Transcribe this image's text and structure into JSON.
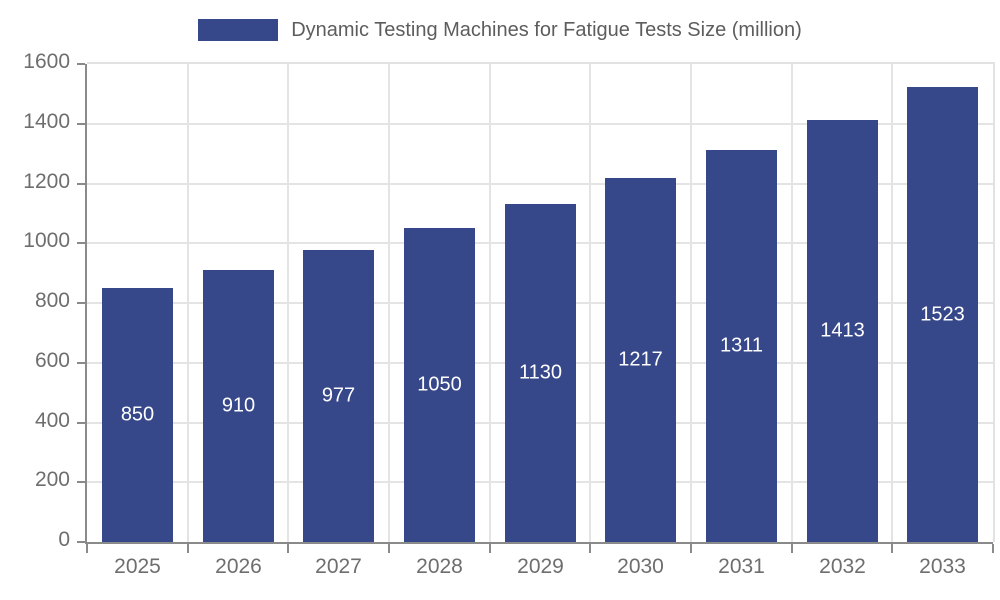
{
  "legend": {
    "label": "Dynamic Testing Machines for Fatigue Tests Size (million)"
  },
  "chart_data": {
    "type": "bar",
    "title": "Dynamic Testing Machines for Fatigue Tests Size (million)",
    "categories": [
      "2025",
      "2026",
      "2027",
      "2028",
      "2029",
      "2030",
      "2031",
      "2032",
      "2033"
    ],
    "values": [
      850,
      910,
      977,
      1050,
      1130,
      1217,
      1311,
      1413,
      1523
    ],
    "series": [
      {
        "name": "Dynamic Testing Machines for Fatigue Tests Size (million)",
        "values": [
          850,
          910,
          977,
          1050,
          1130,
          1217,
          1311,
          1413,
          1523
        ]
      }
    ],
    "xlabel": "",
    "ylabel": "",
    "ylim": [
      0,
      1600
    ],
    "yticks": [
      0,
      200,
      400,
      600,
      800,
      1000,
      1200,
      1400,
      1600
    ],
    "grid": true,
    "value_labels": "centered-inside-bars",
    "legend_position": "top-center",
    "colors": {
      "bar": "#36488a",
      "value_label": "#ffffff",
      "axis": "#8a8a8a",
      "gridline": "#e4e4e4",
      "tick_label": "#6e6e6e",
      "legend_text": "#5d5d5d",
      "background": "#ffffff"
    }
  }
}
